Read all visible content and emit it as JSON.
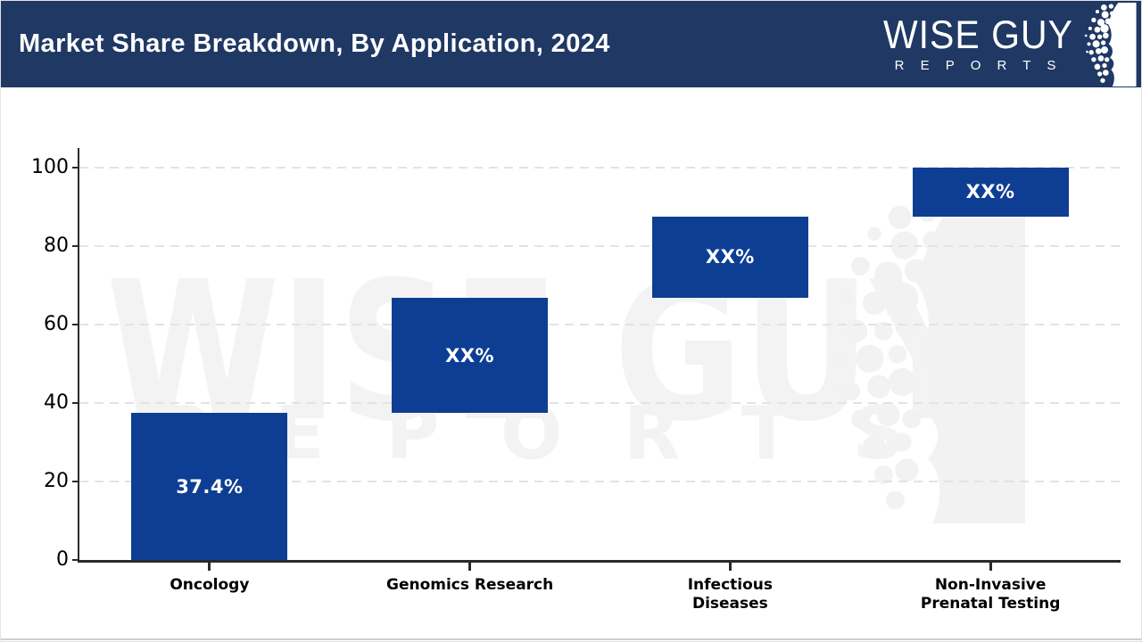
{
  "header": {
    "title": "Market Share Breakdown, By Application, 2024",
    "logo": {
      "line1": "WISE GUY",
      "line2": "R E P O R T S"
    }
  },
  "watermark": {
    "line1": "WISE GUY",
    "line2": "R E P O R T S"
  },
  "colors": {
    "header_bg": "#1F3864",
    "bar": "#0D3E93",
    "axis": "#2A2A2A",
    "grid": "#E3E3E3",
    "value_label": "#FFFFFF",
    "watermark": "#F3F3F3"
  },
  "chart_data": {
    "type": "bar",
    "subtype": "waterfall",
    "title": "Market Share Breakdown, By Application, 2024",
    "xlabel": "",
    "ylabel": "",
    "ylim": [
      0,
      100
    ],
    "yticks": [
      0,
      20,
      40,
      60,
      80,
      100
    ],
    "grid": "horizontal-dashed",
    "legend": "none",
    "categories": [
      "Oncology",
      "Genomics Research",
      "Infectious\nDiseases",
      "Non-Invasive\nPrenatal Testing"
    ],
    "segments": [
      {
        "label": "Oncology",
        "start": 0,
        "end": 37.4,
        "value": 37.4,
        "value_label": "37.4%"
      },
      {
        "label": "Genomics Research",
        "start": 37.4,
        "end": 66.8,
        "value": 29.4,
        "value_label": "XX%"
      },
      {
        "label": "Infectious\nDiseases",
        "start": 66.8,
        "end": 87.6,
        "value": 20.8,
        "value_label": "XX%"
      },
      {
        "label": "Non-Invasive\nPrenatal Testing",
        "start": 87.6,
        "end": 100,
        "value": 12.4,
        "value_label": "XX%"
      }
    ]
  }
}
